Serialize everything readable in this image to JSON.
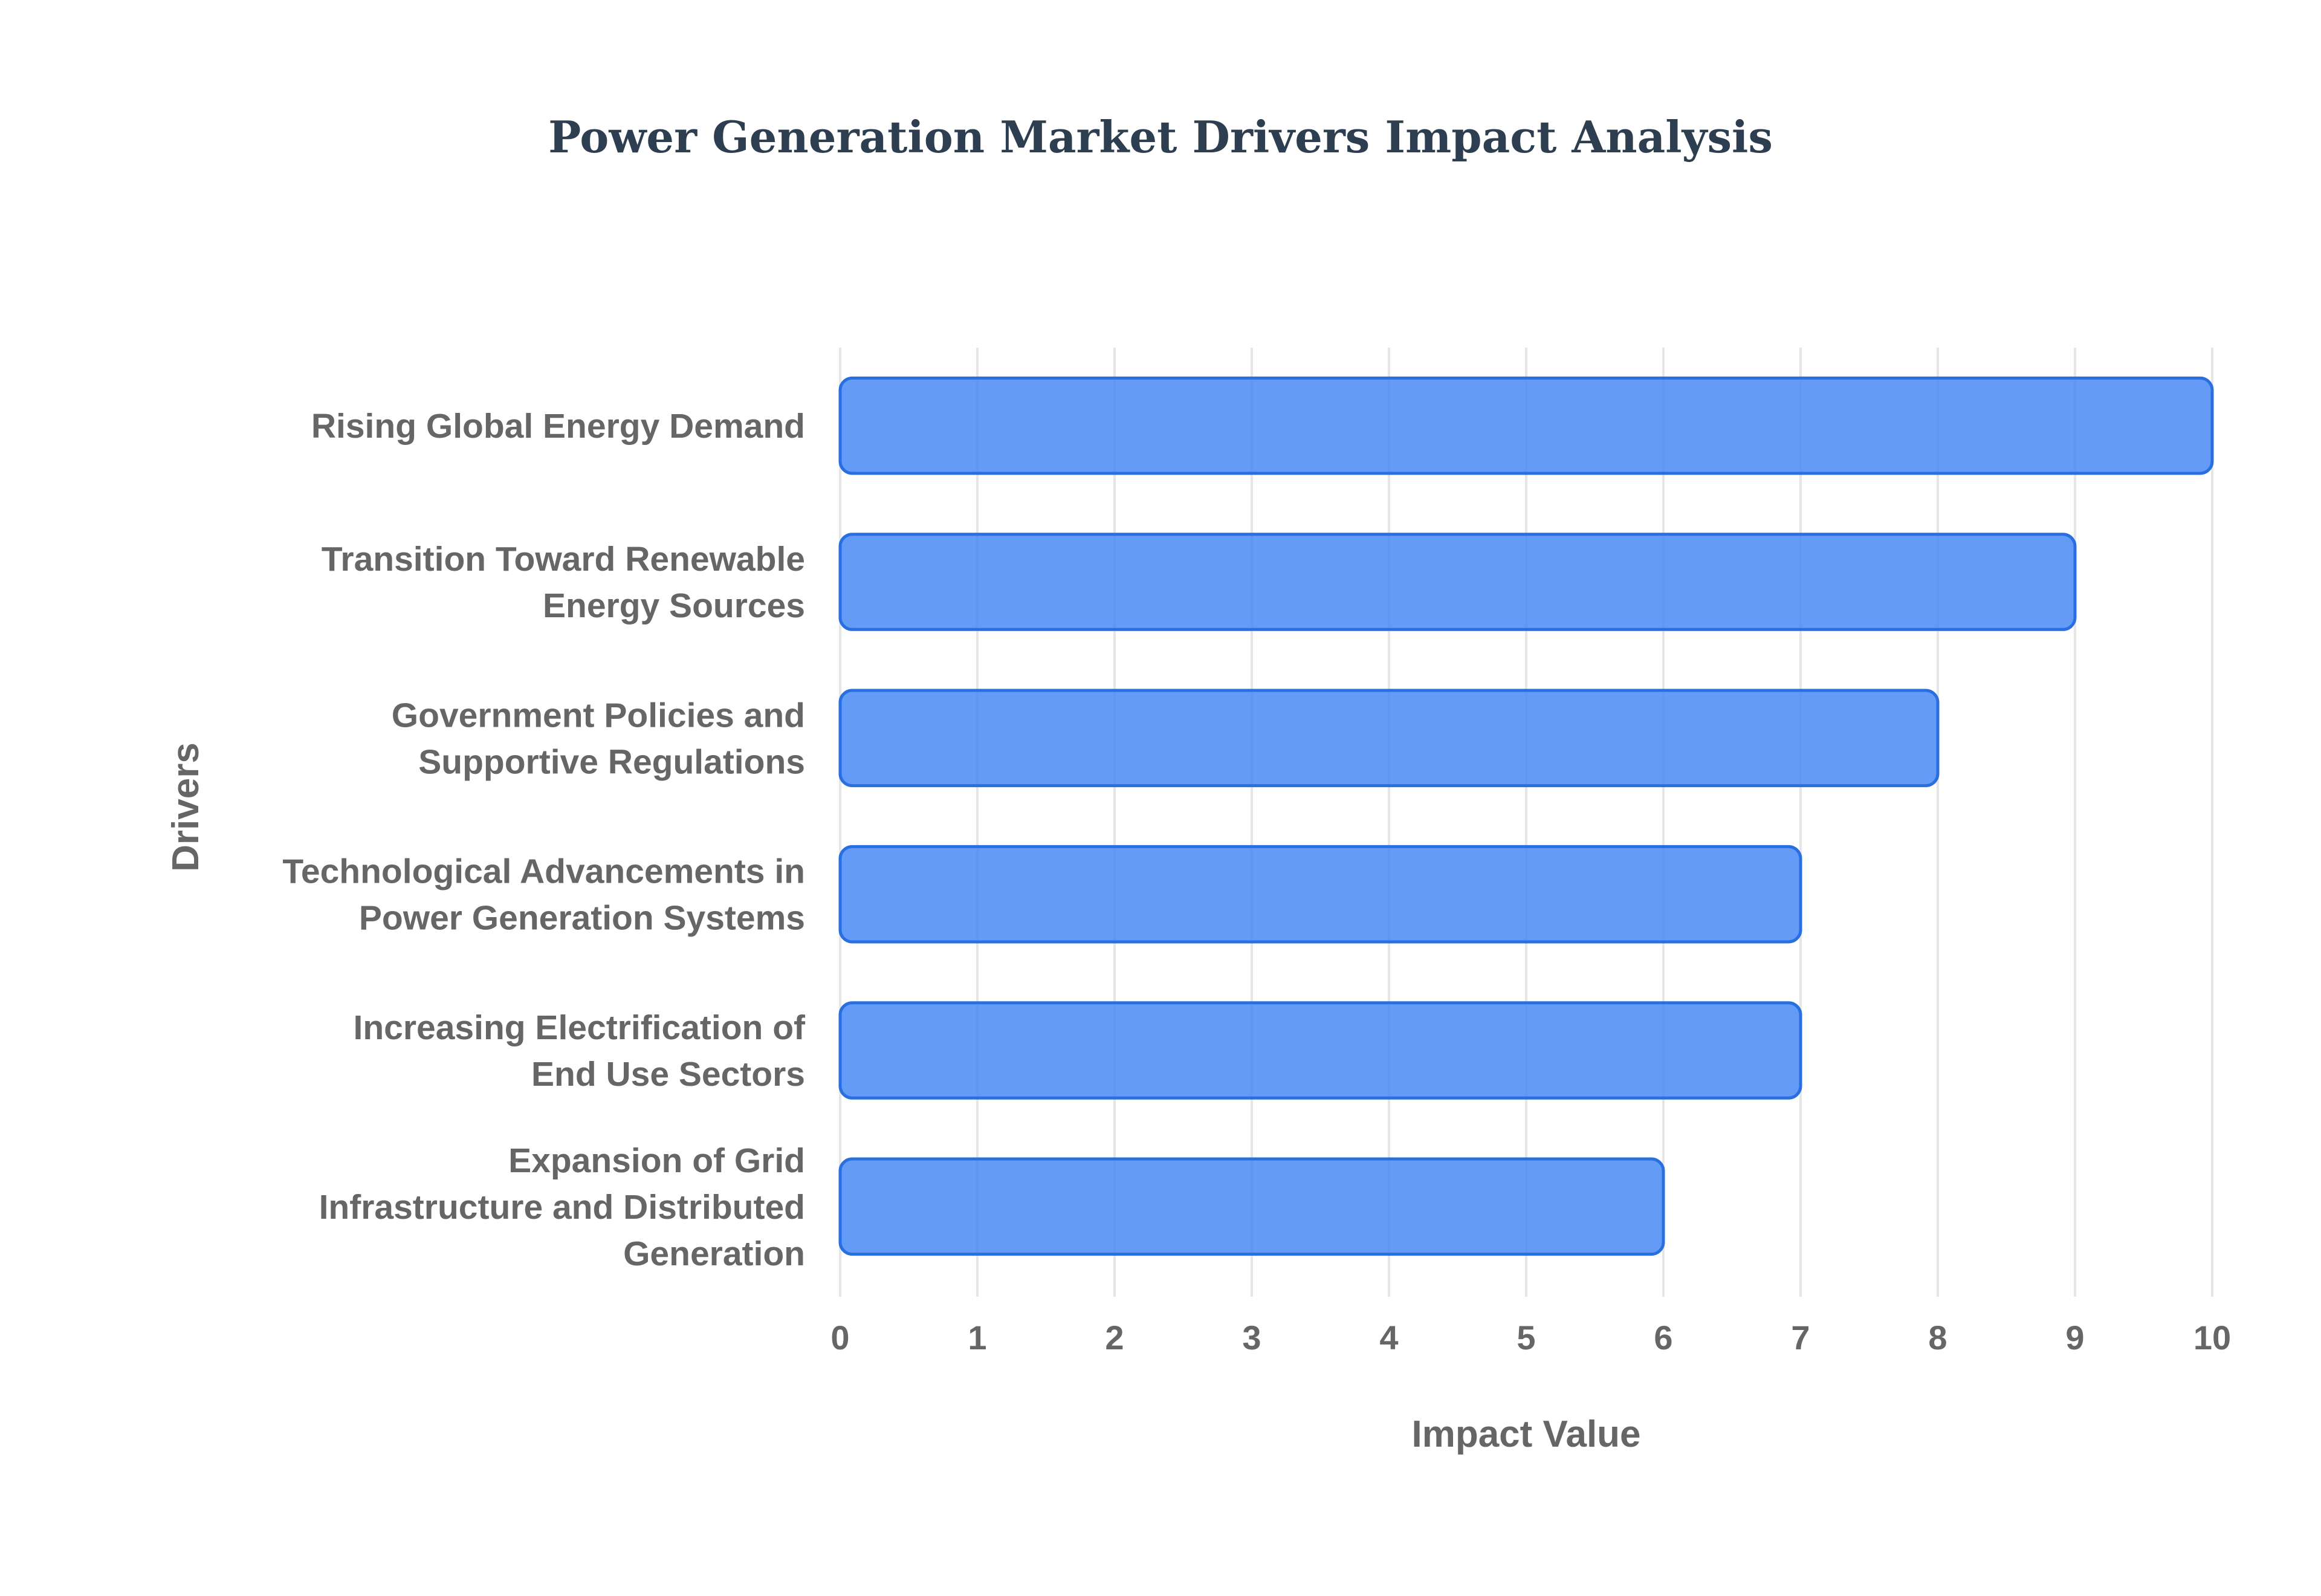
{
  "chart_data": {
    "type": "bar",
    "orientation": "horizontal",
    "title": "Power Generation Market Drivers Impact Analysis",
    "xlabel": "Impact Value",
    "ylabel": "Drivers",
    "categories": [
      [
        "Rising Global Energy Demand"
      ],
      [
        "Transition Toward Renewable",
        "Energy Sources"
      ],
      [
        "Government Policies and",
        "Supportive Regulations"
      ],
      [
        "Technological Advancements in",
        "Power Generation Systems"
      ],
      [
        "Increasing Electrification of",
        "End Use Sectors"
      ],
      [
        "Expansion of Grid",
        "Infrastructure and Distributed",
        "Generation"
      ]
    ],
    "values": [
      10,
      9,
      8,
      7,
      7,
      6
    ],
    "xlim": [
      0,
      10
    ],
    "xticks": [
      "0",
      "1",
      "2",
      "3",
      "4",
      "5",
      "6",
      "7",
      "8",
      "9",
      "10"
    ],
    "grid": true,
    "legend": "none",
    "colors": {
      "bar_fill": "#4285f4",
      "bar_stroke": "#2a6fe0",
      "bar_opacity": 0.82
    }
  }
}
